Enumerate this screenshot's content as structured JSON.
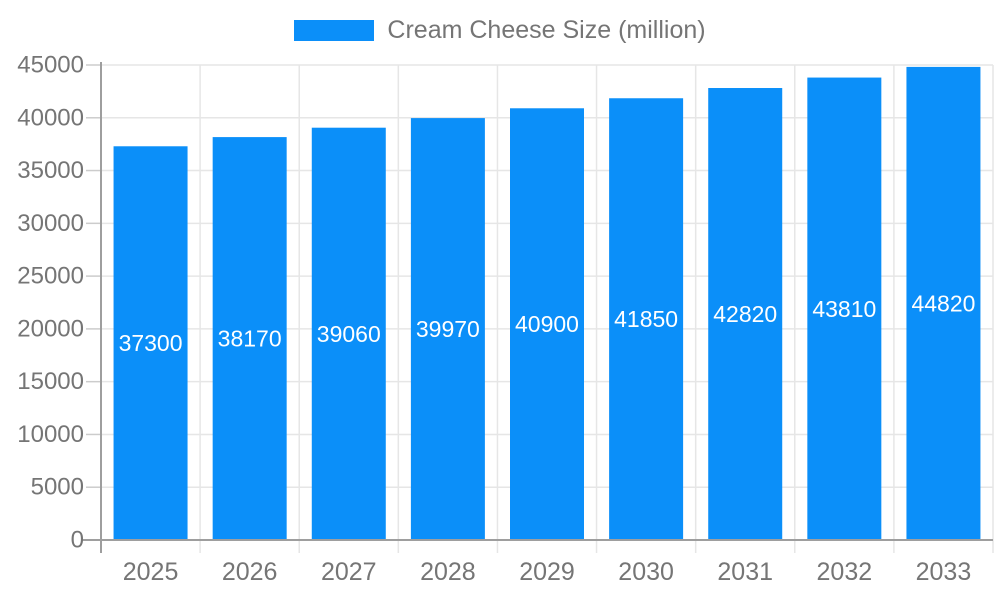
{
  "chart_data": {
    "type": "bar",
    "title": "",
    "legend_label": "Cream Cheese Size (million)",
    "legend_position": "top",
    "categories": [
      "2025",
      "2026",
      "2027",
      "2028",
      "2029",
      "2030",
      "2031",
      "2032",
      "2033"
    ],
    "values": [
      37300,
      38170,
      39060,
      39970,
      40900,
      41850,
      42820,
      43810,
      44820
    ],
    "value_labels": [
      "37300",
      "38170",
      "39060",
      "39970",
      "40900",
      "41850",
      "42820",
      "43810",
      "44820"
    ],
    "value_label_style": "white-inside-bar",
    "xlabel": "",
    "ylabel": "",
    "ylim": [
      0,
      45000
    ],
    "ytick_step": 5000,
    "yticks": [
      0,
      5000,
      10000,
      15000,
      20000,
      25000,
      30000,
      35000,
      40000,
      45000
    ],
    "grid": true,
    "colors": {
      "bar": "#0b8ff9",
      "axis_line": "#9e9e9e",
      "gridline": "#e6e6e6",
      "tick": "#cccccc",
      "axis_text": "#757575",
      "value_text": "#ffffff",
      "background": "#ffffff"
    }
  }
}
